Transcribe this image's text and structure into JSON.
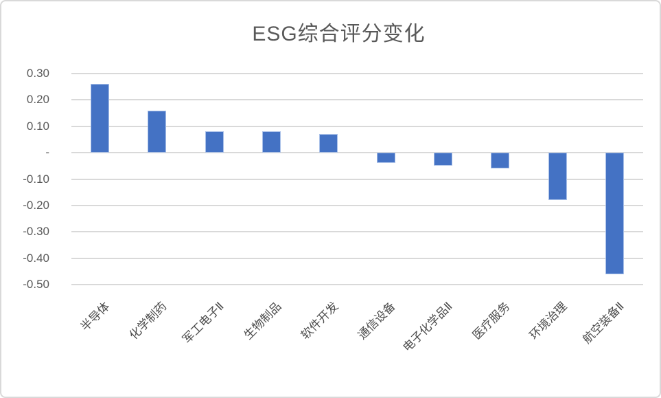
{
  "chart_data": {
    "type": "bar",
    "title": "ESG综合评分变化",
    "categories": [
      "半导体",
      "化学制药",
      "军工电子Ⅱ",
      "生物制品",
      "软件开发",
      "通信设备",
      "电子化学品Ⅱ",
      "医疗服务",
      "环境治理",
      "航空装备Ⅱ"
    ],
    "values": [
      0.26,
      0.16,
      0.08,
      0.08,
      0.07,
      -0.04,
      -0.05,
      -0.06,
      -0.18,
      -0.46
    ],
    "xlabel": "",
    "ylabel": "",
    "ylim": [
      -0.5,
      0.3
    ],
    "ytick_values": [
      0.3,
      0.2,
      0.1,
      0,
      -0.1,
      -0.2,
      -0.3,
      -0.4,
      -0.5
    ],
    "ytick_labels": [
      "0.30",
      "0.20",
      "0.10",
      "-",
      "-0.10",
      "-0.20",
      "-0.30",
      "-0.40",
      "-0.50"
    ],
    "grid": true,
    "legend_position": "none",
    "colors": {
      "bar_fill": "#4472c4",
      "bar_border": "#a9c0e8",
      "gridline": "#d9d9d9",
      "title_text": "#595959",
      "ytick_text": "#595959",
      "xtick_text": "#4d4d4d",
      "background": "#ffffff",
      "canvas_border": "#d9d9d9"
    }
  }
}
